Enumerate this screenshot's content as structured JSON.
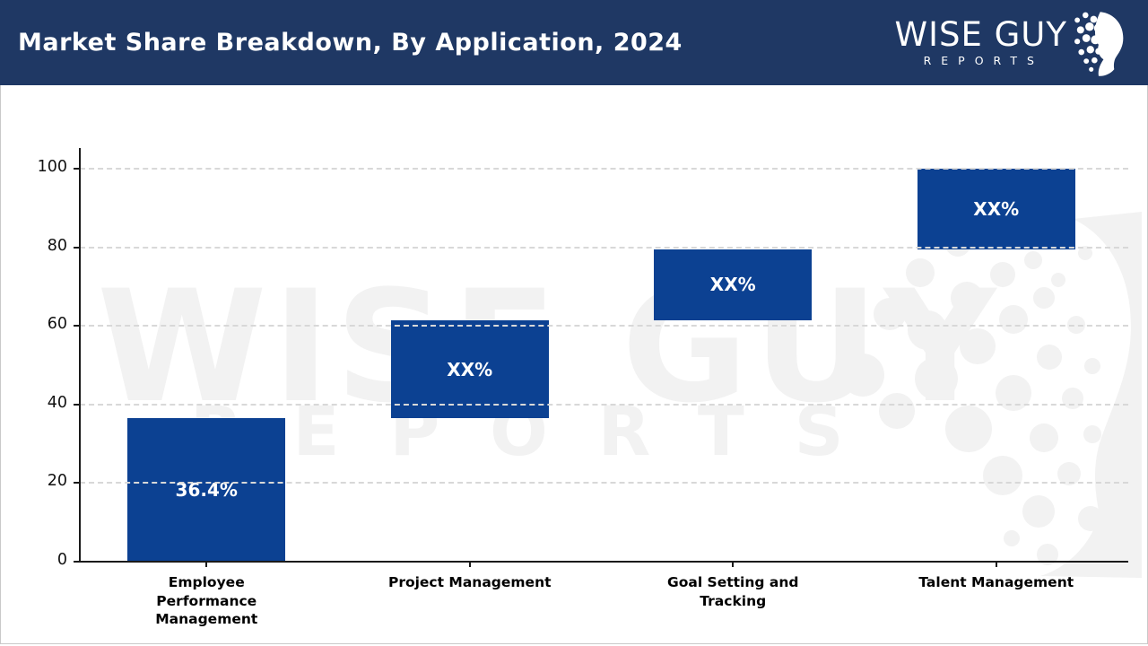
{
  "header": {
    "title": "Market Share Breakdown, By Application, 2024",
    "logo": {
      "line1": "WISE GUY",
      "line2": "REPORTS"
    }
  },
  "watermark": {
    "line1": "WISE GUY",
    "line2": "REPORTS"
  },
  "colors": {
    "header_bg": "#1f3864",
    "bar": "#0c4192",
    "bar_label": "#ffffff",
    "grid": "#d8d8d8",
    "axis": "#1a1a1a",
    "watermark": "#f2f2f2"
  },
  "chart_data": {
    "type": "bar",
    "subtype": "waterfall",
    "title": "Market Share Breakdown, By Application, 2024",
    "categories": [
      "Employee\nPerformance\nManagement",
      "Project Management",
      "Goal Setting and\nTracking",
      "Talent Management"
    ],
    "segments": [
      {
        "category": "Employee Performance Management",
        "start": 0,
        "end": 36.4,
        "label": "36.4%"
      },
      {
        "category": "Project Management",
        "start": 36.4,
        "end": 61.4,
        "label": "XX%"
      },
      {
        "category": "Goal Setting and Tracking",
        "start": 61.4,
        "end": 79.5,
        "label": "XX%"
      },
      {
        "category": "Talent Management",
        "start": 79.5,
        "end": 100,
        "label": "XX%"
      }
    ],
    "xlabel": "",
    "ylabel": "",
    "ylim": [
      0,
      100
    ],
    "yticks": [
      0,
      20,
      40,
      60,
      80,
      100
    ],
    "grid": "horizontal-dashed",
    "legend": "none"
  }
}
